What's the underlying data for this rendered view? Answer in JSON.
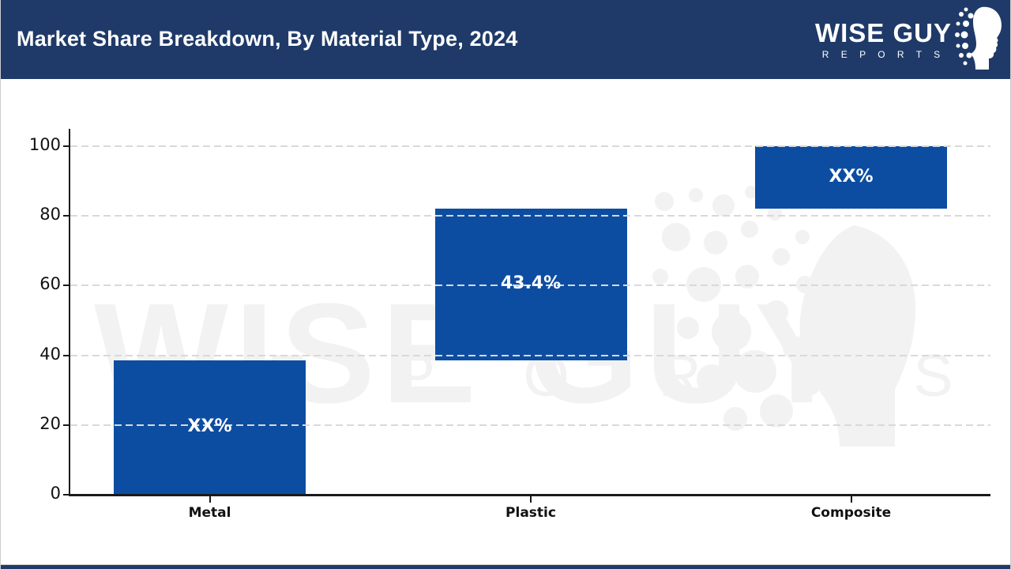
{
  "page": {
    "bg_color": "#ffffff",
    "border_color": "#cccccc"
  },
  "header": {
    "title": "Market Share Breakdown, By Material Type, 2024",
    "bg_color": "#1f3a68",
    "logo": {
      "wordmark": "WISE GUY",
      "subtext": "R E P O R T S"
    }
  },
  "watermark": {
    "wordmark": "WISE GUY",
    "subtext": "R E P O R T S"
  },
  "footer": {
    "bg_color": "#1f3a68"
  },
  "chart_data": {
    "type": "bar",
    "variant": "waterfall",
    "title": "Market Share Breakdown, By Material Type, 2024",
    "categories": [
      "Metal",
      "Plastic",
      "Composite"
    ],
    "bars": [
      {
        "category": "Metal",
        "start": 0,
        "end": 38.6,
        "size": 38.6,
        "label": "XX%"
      },
      {
        "category": "Plastic",
        "start": 38.6,
        "end": 82.0,
        "size": 43.4,
        "label": "43.4%"
      },
      {
        "category": "Composite",
        "start": 82.0,
        "end": 100,
        "size": 18.0,
        "label": "XX%"
      }
    ],
    "xlabel": "",
    "ylabel": "",
    "ylim": [
      0,
      104
    ],
    "yticks": [
      0,
      20,
      40,
      60,
      80,
      100
    ],
    "ytick_labels": [
      "0",
      "20",
      "40",
      "60",
      "80",
      "100"
    ],
    "grid": "horizontal-dashed",
    "legend": "none",
    "bar_color": "#0c4da2",
    "bar_label_color": "#ffffff",
    "axis_color": "#1a1a1a",
    "gridline_color": "#d9d9d9"
  }
}
